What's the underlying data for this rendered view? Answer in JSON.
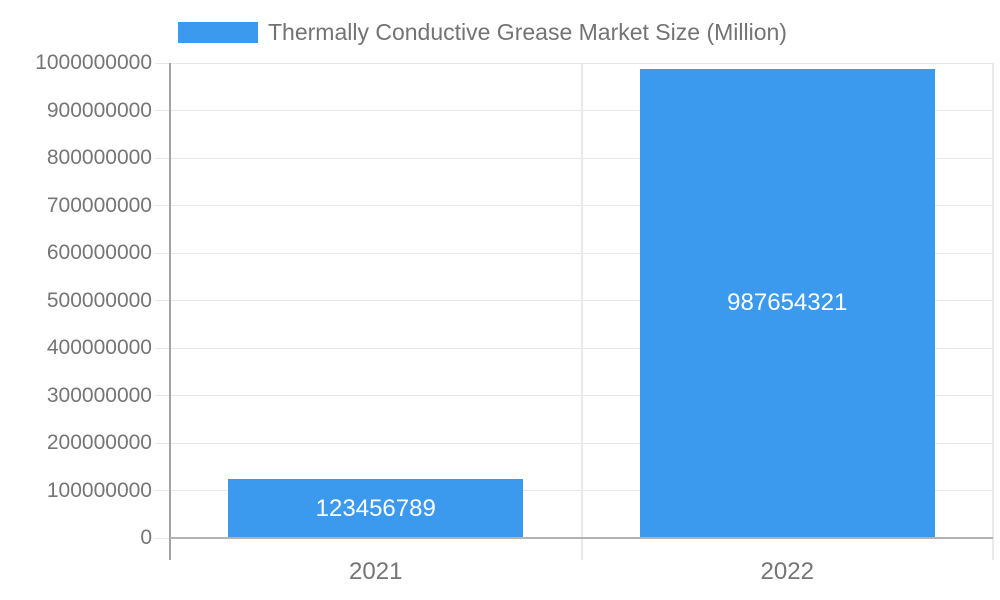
{
  "legend": {
    "label": "Thermally Conductive Grease Market Size (Million)"
  },
  "chart_data": {
    "type": "bar",
    "title": "Thermally Conductive Grease Market Size (Million)",
    "categories": [
      "2021",
      "2022"
    ],
    "values": [
      123456789,
      987654321
    ],
    "bar_labels": [
      "123456789",
      "987654321"
    ],
    "ylim": [
      0,
      1000000000
    ],
    "ytick_interval": 100000000,
    "ytick_labels": [
      "1000000000",
      "900000000",
      "800000000",
      "700000000",
      "600000000",
      "500000000",
      "400000000",
      "300000000",
      "200000000",
      "100000000",
      "0"
    ],
    "xlabel": "",
    "ylabel": "",
    "grid": true,
    "legend_position": "top",
    "colors": {
      "bar": "#3B99EE",
      "bar_label_text": "#ffffff",
      "axis_text": "#757575",
      "gridline": "#e6e6e6",
      "separator": "#e9e9e9",
      "y_axis_line": "#a3a3a3",
      "x_axis_line": "#b3b3b3",
      "background": "#ffffff"
    }
  }
}
